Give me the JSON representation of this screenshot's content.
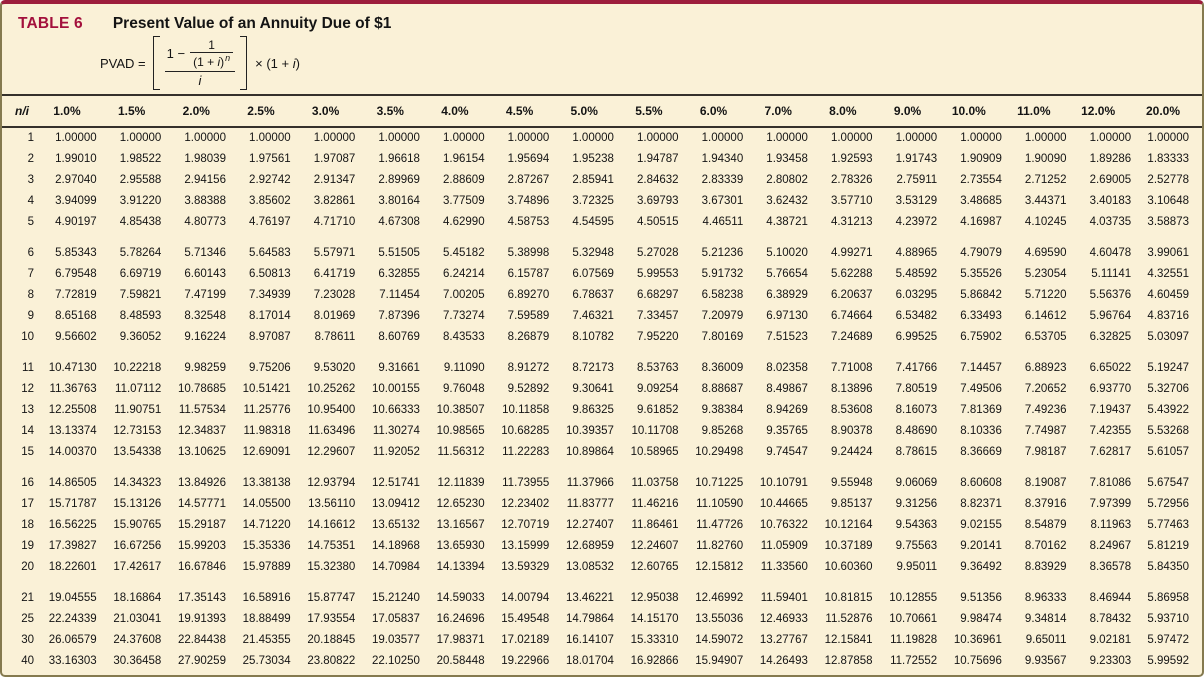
{
  "colors": {
    "accent": "#9D1D3C",
    "background": "#FAF1D7",
    "border": "#857A4F"
  },
  "table": {
    "label": "TABLE 6",
    "title": "Present Value of an Annuity Due of $1",
    "formula": {
      "lhs": "PVAD =",
      "numerator_one": "1 −",
      "inner_numerator": "1",
      "inner_denominator_prefix": "(1 + ",
      "inner_denominator_var": "i",
      "inner_denominator_suffix": ")",
      "inner_exponent": "n",
      "denominator": "i",
      "multiplier_prefix": "× (1 + ",
      "multiplier_var": "i",
      "multiplier_suffix": ")"
    },
    "columns": [
      "n/i",
      "1.0%",
      "1.5%",
      "2.0%",
      "2.5%",
      "3.0%",
      "3.5%",
      "4.0%",
      "4.5%",
      "5.0%",
      "5.5%",
      "6.0%",
      "7.0%",
      "8.0%",
      "9.0%",
      "10.0%",
      "11.0%",
      "12.0%",
      "20.0%"
    ],
    "row_groups": [
      [
        {
          "n": "1",
          "values": [
            "1.00000",
            "1.00000",
            "1.00000",
            "1.00000",
            "1.00000",
            "1.00000",
            "1.00000",
            "1.00000",
            "1.00000",
            "1.00000",
            "1.00000",
            "1.00000",
            "1.00000",
            "1.00000",
            "1.00000",
            "1.00000",
            "1.00000",
            "1.00000"
          ]
        },
        {
          "n": "2",
          "values": [
            "1.99010",
            "1.98522",
            "1.98039",
            "1.97561",
            "1.97087",
            "1.96618",
            "1.96154",
            "1.95694",
            "1.95238",
            "1.94787",
            "1.94340",
            "1.93458",
            "1.92593",
            "1.91743",
            "1.90909",
            "1.90090",
            "1.89286",
            "1.83333"
          ]
        },
        {
          "n": "3",
          "values": [
            "2.97040",
            "2.95588",
            "2.94156",
            "2.92742",
            "2.91347",
            "2.89969",
            "2.88609",
            "2.87267",
            "2.85941",
            "2.84632",
            "2.83339",
            "2.80802",
            "2.78326",
            "2.75911",
            "2.73554",
            "2.71252",
            "2.69005",
            "2.52778"
          ]
        },
        {
          "n": "4",
          "values": [
            "3.94099",
            "3.91220",
            "3.88388",
            "3.85602",
            "3.82861",
            "3.80164",
            "3.77509",
            "3.74896",
            "3.72325",
            "3.69793",
            "3.67301",
            "3.62432",
            "3.57710",
            "3.53129",
            "3.48685",
            "3.44371",
            "3.40183",
            "3.10648"
          ]
        },
        {
          "n": "5",
          "values": [
            "4.90197",
            "4.85438",
            "4.80773",
            "4.76197",
            "4.71710",
            "4.67308",
            "4.62990",
            "4.58753",
            "4.54595",
            "4.50515",
            "4.46511",
            "4.38721",
            "4.31213",
            "4.23972",
            "4.16987",
            "4.10245",
            "4.03735",
            "3.58873"
          ]
        }
      ],
      [
        {
          "n": "6",
          "values": [
            "5.85343",
            "5.78264",
            "5.71346",
            "5.64583",
            "5.57971",
            "5.51505",
            "5.45182",
            "5.38998",
            "5.32948",
            "5.27028",
            "5.21236",
            "5.10020",
            "4.99271",
            "4.88965",
            "4.79079",
            "4.69590",
            "4.60478",
            "3.99061"
          ]
        },
        {
          "n": "7",
          "values": [
            "6.79548",
            "6.69719",
            "6.60143",
            "6.50813",
            "6.41719",
            "6.32855",
            "6.24214",
            "6.15787",
            "6.07569",
            "5.99553",
            "5.91732",
            "5.76654",
            "5.62288",
            "5.48592",
            "5.35526",
            "5.23054",
            "5.11141",
            "4.32551"
          ]
        },
        {
          "n": "8",
          "values": [
            "7.72819",
            "7.59821",
            "7.47199",
            "7.34939",
            "7.23028",
            "7.11454",
            "7.00205",
            "6.89270",
            "6.78637",
            "6.68297",
            "6.58238",
            "6.38929",
            "6.20637",
            "6.03295",
            "5.86842",
            "5.71220",
            "5.56376",
            "4.60459"
          ]
        },
        {
          "n": "9",
          "values": [
            "8.65168",
            "8.48593",
            "8.32548",
            "8.17014",
            "8.01969",
            "7.87396",
            "7.73274",
            "7.59589",
            "7.46321",
            "7.33457",
            "7.20979",
            "6.97130",
            "6.74664",
            "6.53482",
            "6.33493",
            "6.14612",
            "5.96764",
            "4.83716"
          ]
        },
        {
          "n": "10",
          "values": [
            "9.56602",
            "9.36052",
            "9.16224",
            "8.97087",
            "8.78611",
            "8.60769",
            "8.43533",
            "8.26879",
            "8.10782",
            "7.95220",
            "7.80169",
            "7.51523",
            "7.24689",
            "6.99525",
            "6.75902",
            "6.53705",
            "6.32825",
            "5.03097"
          ]
        }
      ],
      [
        {
          "n": "11",
          "values": [
            "10.47130",
            "10.22218",
            "9.98259",
            "9.75206",
            "9.53020",
            "9.31661",
            "9.11090",
            "8.91272",
            "8.72173",
            "8.53763",
            "8.36009",
            "8.02358",
            "7.71008",
            "7.41766",
            "7.14457",
            "6.88923",
            "6.65022",
            "5.19247"
          ]
        },
        {
          "n": "12",
          "values": [
            "11.36763",
            "11.07112",
            "10.78685",
            "10.51421",
            "10.25262",
            "10.00155",
            "9.76048",
            "9.52892",
            "9.30641",
            "9.09254",
            "8.88687",
            "8.49867",
            "8.13896",
            "7.80519",
            "7.49506",
            "7.20652",
            "6.93770",
            "5.32706"
          ]
        },
        {
          "n": "13",
          "values": [
            "12.25508",
            "11.90751",
            "11.57534",
            "11.25776",
            "10.95400",
            "10.66333",
            "10.38507",
            "10.11858",
            "9.86325",
            "9.61852",
            "9.38384",
            "8.94269",
            "8.53608",
            "8.16073",
            "7.81369",
            "7.49236",
            "7.19437",
            "5.43922"
          ]
        },
        {
          "n": "14",
          "values": [
            "13.13374",
            "12.73153",
            "12.34837",
            "11.98318",
            "11.63496",
            "11.30274",
            "10.98565",
            "10.68285",
            "10.39357",
            "10.11708",
            "9.85268",
            "9.35765",
            "8.90378",
            "8.48690",
            "8.10336",
            "7.74987",
            "7.42355",
            "5.53268"
          ]
        },
        {
          "n": "15",
          "values": [
            "14.00370",
            "13.54338",
            "13.10625",
            "12.69091",
            "12.29607",
            "11.92052",
            "11.56312",
            "11.22283",
            "10.89864",
            "10.58965",
            "10.29498",
            "9.74547",
            "9.24424",
            "8.78615",
            "8.36669",
            "7.98187",
            "7.62817",
            "5.61057"
          ]
        }
      ],
      [
        {
          "n": "16",
          "values": [
            "14.86505",
            "14.34323",
            "13.84926",
            "13.38138",
            "12.93794",
            "12.51741",
            "12.11839",
            "11.73955",
            "11.37966",
            "11.03758",
            "10.71225",
            "10.10791",
            "9.55948",
            "9.06069",
            "8.60608",
            "8.19087",
            "7.81086",
            "5.67547"
          ]
        },
        {
          "n": "17",
          "values": [
            "15.71787",
            "15.13126",
            "14.57771",
            "14.05500",
            "13.56110",
            "13.09412",
            "12.65230",
            "12.23402",
            "11.83777",
            "11.46216",
            "11.10590",
            "10.44665",
            "9.85137",
            "9.31256",
            "8.82371",
            "8.37916",
            "7.97399",
            "5.72956"
          ]
        },
        {
          "n": "18",
          "values": [
            "16.56225",
            "15.90765",
            "15.29187",
            "14.71220",
            "14.16612",
            "13.65132",
            "13.16567",
            "12.70719",
            "12.27407",
            "11.86461",
            "11.47726",
            "10.76322",
            "10.12164",
            "9.54363",
            "9.02155",
            "8.54879",
            "8.11963",
            "5.77463"
          ]
        },
        {
          "n": "19",
          "values": [
            "17.39827",
            "16.67256",
            "15.99203",
            "15.35336",
            "14.75351",
            "14.18968",
            "13.65930",
            "13.15999",
            "12.68959",
            "12.24607",
            "11.82760",
            "11.05909",
            "10.37189",
            "9.75563",
            "9.20141",
            "8.70162",
            "8.24967",
            "5.81219"
          ]
        },
        {
          "n": "20",
          "values": [
            "18.22601",
            "17.42617",
            "16.67846",
            "15.97889",
            "15.32380",
            "14.70984",
            "14.13394",
            "13.59329",
            "13.08532",
            "12.60765",
            "12.15812",
            "11.33560",
            "10.60360",
            "9.95011",
            "9.36492",
            "8.83929",
            "8.36578",
            "5.84350"
          ]
        }
      ],
      [
        {
          "n": "21",
          "values": [
            "19.04555",
            "18.16864",
            "17.35143",
            "16.58916",
            "15.87747",
            "15.21240",
            "14.59033",
            "14.00794",
            "13.46221",
            "12.95038",
            "12.46992",
            "11.59401",
            "10.81815",
            "10.12855",
            "9.51356",
            "8.96333",
            "8.46944",
            "5.86958"
          ]
        },
        {
          "n": "25",
          "values": [
            "22.24339",
            "21.03041",
            "19.91393",
            "18.88499",
            "17.93554",
            "17.05837",
            "16.24696",
            "15.49548",
            "14.79864",
            "14.15170",
            "13.55036",
            "12.46933",
            "11.52876",
            "10.70661",
            "9.98474",
            "9.34814",
            "8.78432",
            "5.93710"
          ]
        },
        {
          "n": "30",
          "values": [
            "26.06579",
            "24.37608",
            "22.84438",
            "21.45355",
            "20.18845",
            "19.03577",
            "17.98371",
            "17.02189",
            "16.14107",
            "15.33310",
            "14.59072",
            "13.27767",
            "12.15841",
            "11.19828",
            "10.36961",
            "9.65011",
            "9.02181",
            "5.97472"
          ]
        },
        {
          "n": "40",
          "values": [
            "33.16303",
            "30.36458",
            "27.90259",
            "25.73034",
            "23.80822",
            "22.10250",
            "20.58448",
            "19.22966",
            "18.01704",
            "16.92866",
            "15.94907",
            "14.26493",
            "12.87858",
            "11.72552",
            "10.75696",
            "9.93567",
            "9.23303",
            "5.99592"
          ]
        }
      ]
    ]
  }
}
